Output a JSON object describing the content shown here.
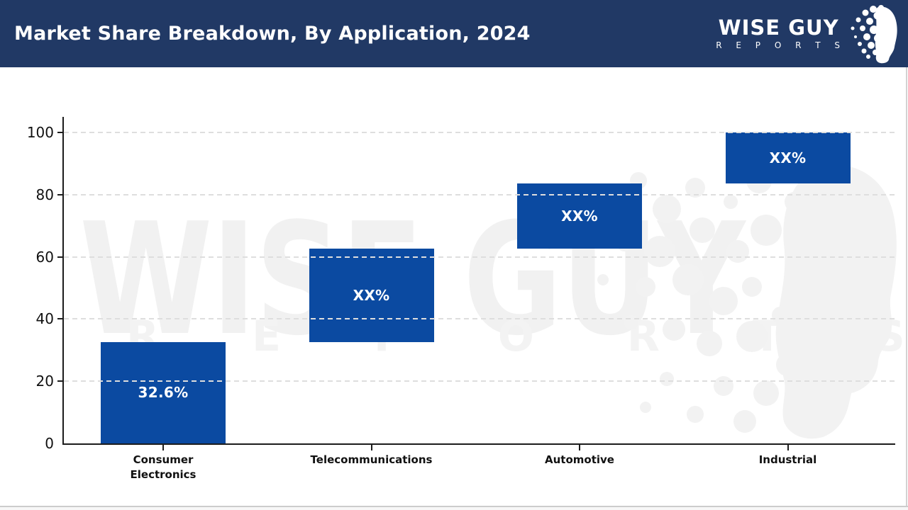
{
  "header": {
    "title": "Market Share Breakdown, By Application, 2024",
    "logo": {
      "name": "WISE GUY",
      "tagline": "R E P O R T S"
    }
  },
  "watermark": {
    "name": "WISE GUY",
    "tagline": "R E P O R T S"
  },
  "chart_data": {
    "type": "bar",
    "subtype": "floating-waterfall",
    "title": "Market Share Breakdown, By Application, 2024",
    "categories": [
      "Consumer Electronics",
      "Telecommunications",
      "Automotive",
      "Industrial"
    ],
    "tick_labels": [
      "Consumer\nElectronics",
      "Telecommunications",
      "Automotive",
      "Industrial"
    ],
    "bars": [
      {
        "category": "Consumer Electronics",
        "start": 0,
        "end": 32.6,
        "label": "32.6%"
      },
      {
        "category": "Telecommunications",
        "start": 32.6,
        "end": 62.6,
        "label": "XX%"
      },
      {
        "category": "Automotive",
        "start": 62.6,
        "end": 83.6,
        "label": "XX%"
      },
      {
        "category": "Industrial",
        "start": 83.6,
        "end": 100,
        "label": "XX%"
      }
    ],
    "ylim": [
      0,
      100
    ],
    "yticks": [
      0,
      20,
      40,
      60,
      80,
      100
    ],
    "grid": "horizontal-dashed",
    "legend": "none",
    "bar_color": "#0b4aa1",
    "bar_label_color": "#ffffff",
    "colors": {
      "header_bg": "#213965",
      "axis": "#1c1c1c",
      "gridline": "#dedede",
      "watermark": "#f1f1f1"
    }
  }
}
